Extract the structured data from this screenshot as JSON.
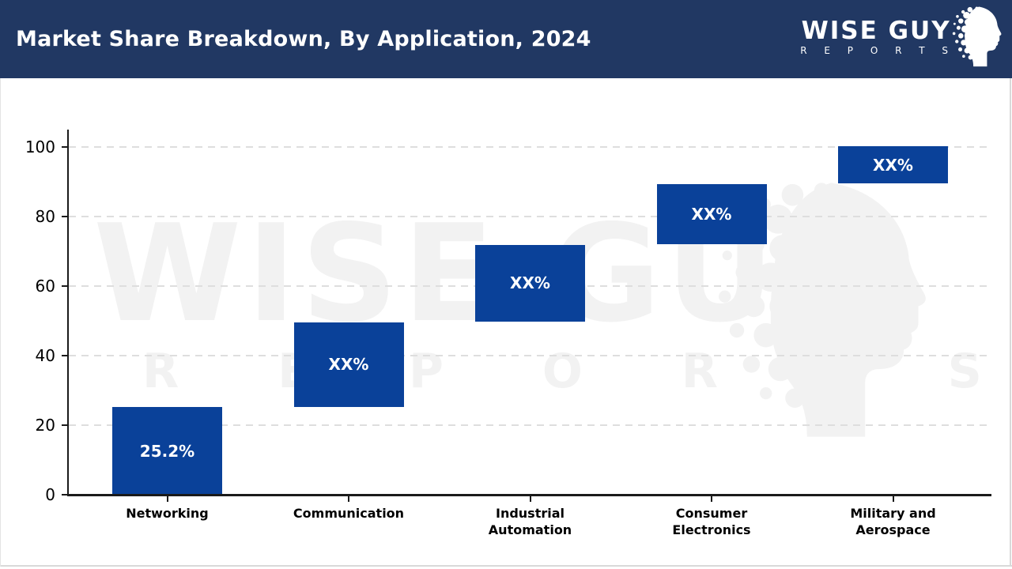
{
  "header": {
    "title": "Market Share Breakdown, By Application, 2024",
    "logo": {
      "line1": "WISE GUY",
      "line2": "R E P O R T S"
    }
  },
  "watermark": {
    "line1": "WISE GUY",
    "line2": "R E P O R T S"
  },
  "colors": {
    "header_bg": "#213863",
    "bar": "#0a4199",
    "grid": "#dedede",
    "axis": "#1a1a1a",
    "bar_label": "#ffffff",
    "watermark": "#f2f2f2"
  },
  "chart_data": {
    "type": "bar",
    "subtype": "waterfall-style floating segments",
    "title": "Market Share Breakdown, By Application, 2024",
    "xlabel": "",
    "ylabel": "",
    "ylim": [
      0,
      105
    ],
    "yticks": [
      0,
      20,
      40,
      60,
      80,
      100
    ],
    "grid": "horizontal dashed",
    "legend": "none",
    "categories": [
      "Networking",
      "Communication",
      "Industrial Automation",
      "Consumer Electronics",
      "Military and Aerospace"
    ],
    "category_label_lines": [
      [
        "Networking"
      ],
      [
        "Communication"
      ],
      [
        "Industrial",
        "Automation"
      ],
      [
        "Consumer",
        "Electronics"
      ],
      [
        "Military and",
        "Aerospace"
      ]
    ],
    "segments": [
      {
        "category": "Networking",
        "start": 0,
        "end": 25.2,
        "label": "25.2%"
      },
      {
        "category": "Communication",
        "start": 25.2,
        "end": 49.6,
        "label": "XX%"
      },
      {
        "category": "Industrial Automation",
        "start": 49.8,
        "end": 71.8,
        "label": "XX%"
      },
      {
        "category": "Consumer Electronics",
        "start": 72.0,
        "end": 89.3,
        "label": "XX%"
      },
      {
        "category": "Military and Aerospace",
        "start": 89.5,
        "end": 100.2,
        "label": "XX%"
      }
    ],
    "values_per_segment": [
      25.2,
      24.4,
      22.0,
      17.3,
      10.7
    ]
  }
}
